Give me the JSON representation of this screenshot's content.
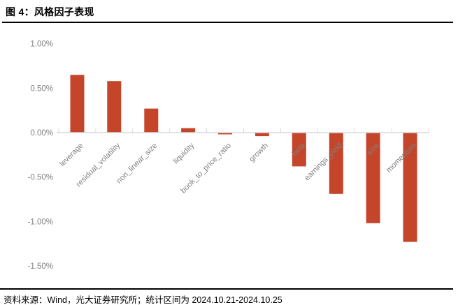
{
  "figure": {
    "title": "图 4：风格因子表现",
    "source_note": "资料来源：Wind，光大证券研究所；统计区间为 2024.10.21-2024.10.25"
  },
  "chart_data": {
    "type": "bar",
    "title": "风格因子表现",
    "categories": [
      "leverage",
      "residual_volatility",
      "non_linear_size",
      "liquidity",
      "book_to_price_ratio",
      "growth",
      "beta",
      "earnings_yield",
      "size",
      "momentum"
    ],
    "values": [
      0.65,
      0.58,
      0.27,
      0.05,
      -0.02,
      -0.04,
      -0.38,
      -0.69,
      -1.02,
      -1.23
    ],
    "unit": "%",
    "y_tick_labels": [
      "1.00%",
      "0.50%",
      "0.00%",
      "-0.50%",
      "-1.00%",
      "-1.50%"
    ],
    "y_tick_values": [
      1.0,
      0.5,
      0.0,
      -0.5,
      -1.0,
      -1.5
    ],
    "ylim": [
      -1.5,
      1.0
    ],
    "grid": false,
    "legend": false,
    "x_label_rotation_deg": -45,
    "bar_color": "#C5452B",
    "axis_line_color": "#D9D9D9",
    "tick_color": "#D9D9D9",
    "axis_label_color": "#808080"
  }
}
